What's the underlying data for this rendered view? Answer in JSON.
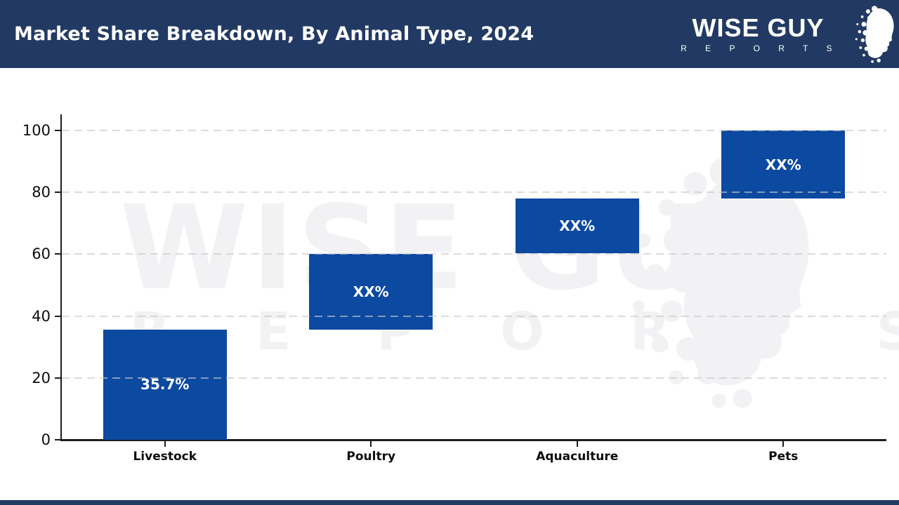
{
  "header": {
    "title": "Market Share Breakdown, By Animal Type, 2024",
    "logo": {
      "name": "WISE GUY",
      "tagline": "R E P O R T S"
    }
  },
  "watermark": {
    "line1": "WISE GUY",
    "line2": "R E P O R T S"
  },
  "colors": {
    "header_navy": "#223a63",
    "bar_blue": "#0c49a0",
    "axis": "#1c1c1c",
    "gridline": "#d9d9d9",
    "value_label": "#ffffff",
    "watermark": "#f2f2f4"
  },
  "chart_data": {
    "type": "bar",
    "subtype": "waterfall",
    "title": "Market Share Breakdown, By Animal Type, 2024",
    "categories": [
      "Livestock",
      "Poultry",
      "Aquaculture",
      "Pets"
    ],
    "segments": [
      {
        "category": "Livestock",
        "start": 0,
        "end": 35.7,
        "label": "35.7%"
      },
      {
        "category": "Poultry",
        "start": 35.7,
        "end": 60.2,
        "label": "XX%"
      },
      {
        "category": "Aquaculture",
        "start": 60.2,
        "end": 77.9,
        "label": "XX%"
      },
      {
        "category": "Pets",
        "start": 77.9,
        "end": 100,
        "label": "XX%"
      }
    ],
    "xlabel": "",
    "ylabel": "",
    "ylim": [
      0,
      105.2
    ],
    "yticks": [
      0,
      20,
      40,
      60,
      80,
      100
    ],
    "grid": true,
    "grid_style": "dashed",
    "legend": null,
    "bar_width_fraction": 0.6,
    "bar_color": "#0c49a0",
    "value_label_color": "#ffffff"
  }
}
